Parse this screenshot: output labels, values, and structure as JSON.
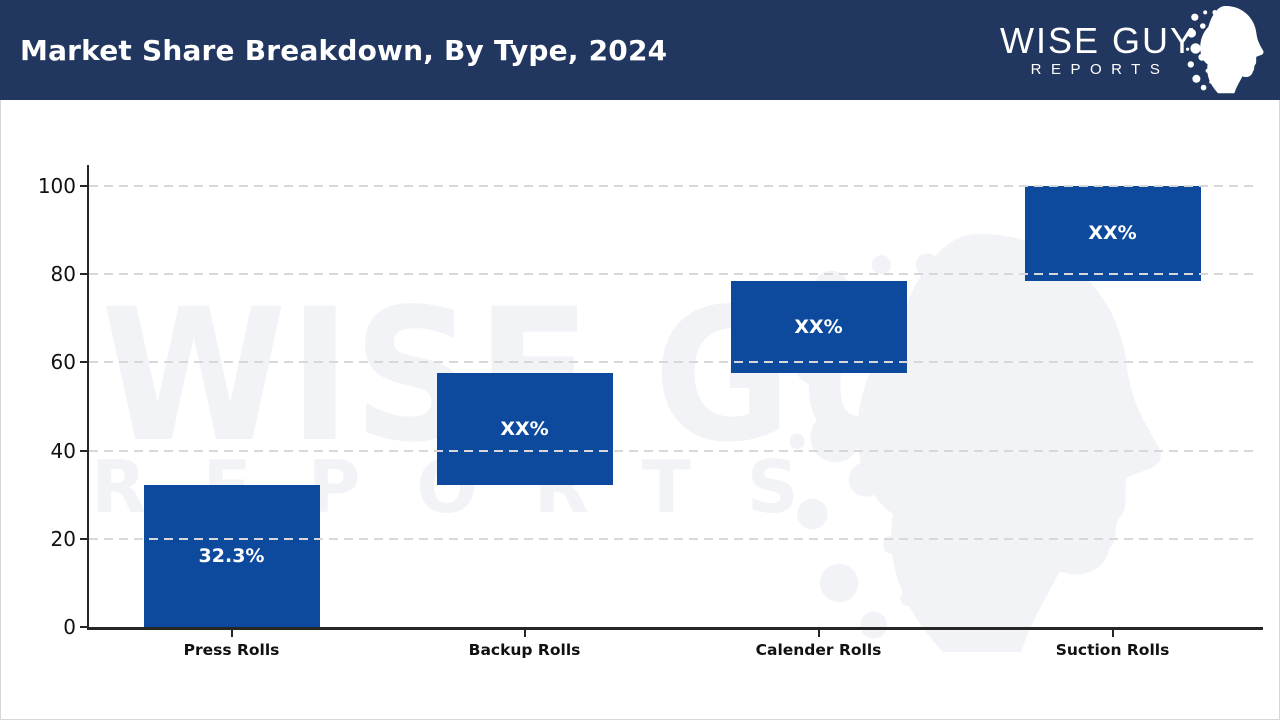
{
  "header": {
    "title": "Market Share Breakdown, By Type, 2024",
    "bg_color": "#22375f",
    "logo": {
      "line1": "WISE GUY",
      "line2": "REPORTS"
    }
  },
  "watermark": {
    "line1": "WISE GUY",
    "line2": "REPORTS"
  },
  "chart_data": {
    "type": "bar",
    "subtype": "waterfall",
    "title": "Market Share Breakdown, By Type, 2024",
    "categories": [
      "Press Rolls",
      "Backup Rolls",
      "Calender Rolls",
      "Suction Rolls"
    ],
    "segments": [
      {
        "category": "Press Rolls",
        "start": 0,
        "end": 32.3,
        "label": "32.3%"
      },
      {
        "category": "Backup Rolls",
        "start": 32.3,
        "end": 57.7,
        "label": "XX%"
      },
      {
        "category": "Calender Rolls",
        "start": 57.7,
        "end": 78.5,
        "label": "XX%"
      },
      {
        "category": "Suction Rolls",
        "start": 78.5,
        "end": 100,
        "label": "XX%"
      }
    ],
    "ylim": [
      0,
      105
    ],
    "yticks": [
      0,
      20,
      40,
      60,
      80,
      100
    ],
    "xlabel": "",
    "ylabel": "",
    "grid": "horizontal-dashed-over-bars",
    "legend": "none",
    "bar_color": "#0d4a9e",
    "bar_label_color": "#ffffff",
    "axis_color": "#262626",
    "grid_color": "#d8d8d8"
  }
}
